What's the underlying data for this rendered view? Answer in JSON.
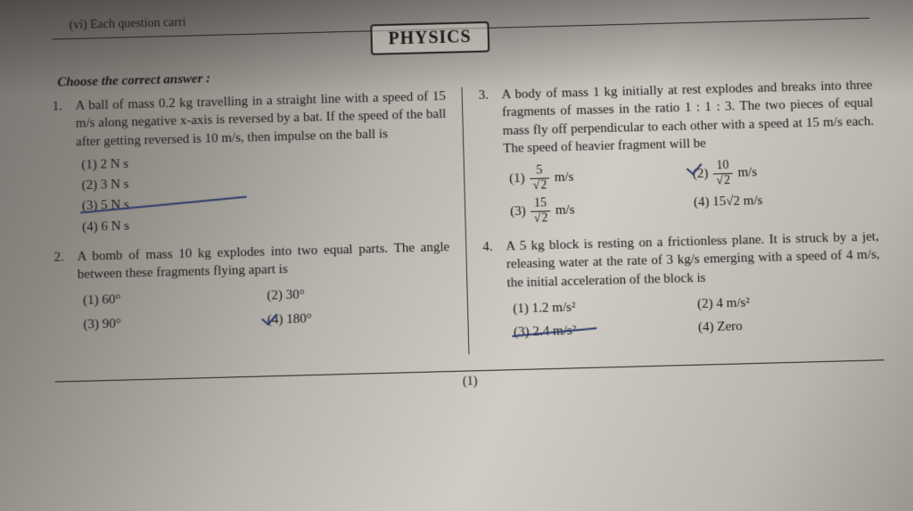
{
  "header": {
    "partial_item": "(vi)  Each question carri",
    "subject": "PHYSICS"
  },
  "instruction": "Choose the correct answer :",
  "questions": {
    "q1": {
      "num": "1.",
      "text": "A ball of mass 0.2 kg travelling in a straight line with a speed of 15 m/s along negative x-axis is reversed by a bat. If the speed of the ball after getting reversed is 10 m/s, then impulse on the ball is",
      "opts": {
        "o1": "(1)  2 N s",
        "o2": "(2)  3 N s",
        "o3": "(3)  5 N s",
        "o4": "(4)  6 N s"
      }
    },
    "q2": {
      "num": "2.",
      "text": "A bomb of mass 10 kg explodes into two equal parts. The angle between these fragments flying apart is",
      "opts": {
        "o1": "(1)  60°",
        "o2": "(2)  30°",
        "o3": "(3)  90°",
        "o4": "(4)  180°"
      }
    },
    "q3": {
      "num": "3.",
      "text": "A body of mass 1 kg initially at rest explodes and breaks into three fragments of masses in the ratio 1 : 1 : 3. The two pieces of equal mass fly off perpendicular to each other with a speed at 15 m/s each. The speed of heavier fragment will be",
      "opts": {
        "o1_pre": "(1)  ",
        "o1_n": "5",
        "o1_d": "2",
        "o1_suf": " m/s",
        "o2_pre": "(2)  ",
        "o2_n": "10",
        "o2_d": "2",
        "o2_suf": " m/s",
        "o3_pre": "(3)  ",
        "o3_n": "15",
        "o3_d": "2",
        "o3_suf": " m/s",
        "o4": "(4)  15√2  m/s"
      }
    },
    "q4": {
      "num": "4.",
      "text": "A 5 kg block is resting on a frictionless plane. It is struck by a jet, releasing water at the rate of 3 kg/s emerging with a speed of 4 m/s, the initial acceleration of the block is",
      "opts": {
        "o1": "(1)  1.2 m/s²",
        "o2": "(2)  4 m/s²",
        "o3": "(3)  2.4 m/s²",
        "o4": "(4)  Zero"
      }
    }
  },
  "footer_mark": "(1)"
}
